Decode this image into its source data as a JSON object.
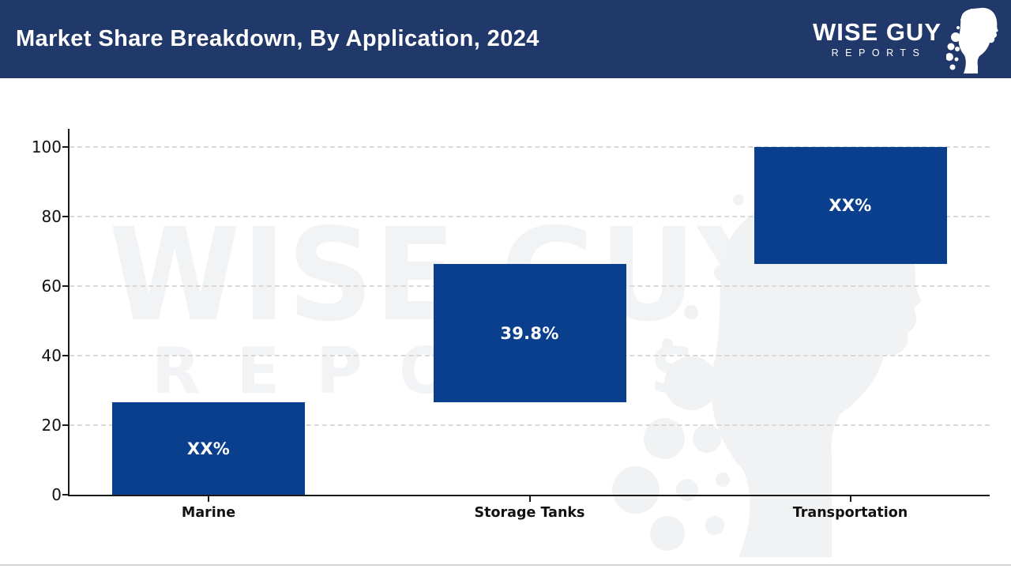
{
  "header": {
    "title": "Market Share Breakdown, By Application, 2024",
    "logo": {
      "line1": "WISE GUY",
      "line2": "REPORTS"
    }
  },
  "watermark": {
    "line1": "WISE GUY",
    "line2": "REPORTS"
  },
  "colors": {
    "header_bg": "#21386B",
    "bar_blue": "#0A3F8E",
    "gridline": "#D9D9D9",
    "axis": "#1A1A1A",
    "watermark": "#F2F3F5",
    "bar_label_text": "#FFFFFF"
  },
  "chart_data": {
    "type": "bar",
    "subtype": "waterfall-stacked-segments",
    "title": "Market Share Breakdown, By Application, 2024",
    "categories": [
      "Marine",
      "Storage Tanks",
      "Transportation"
    ],
    "segments": [
      {
        "category": "Marine",
        "start": 0,
        "end": 26.5,
        "label": "XX%"
      },
      {
        "category": "Storage Tanks",
        "start": 26.5,
        "end": 66.3,
        "label": "39.8%"
      },
      {
        "category": "Transportation",
        "start": 66.3,
        "end": 100,
        "label": "XX%"
      }
    ],
    "values_displayed": [
      "XX%",
      "39.8%",
      "XX%"
    ],
    "yticks": [
      0,
      20,
      40,
      60,
      80,
      100
    ],
    "ylim": [
      0,
      105
    ],
    "xlabel": "",
    "ylabel": "",
    "grid": "horizontal-dashed",
    "legend": false,
    "bar_color": "#0A3F8E"
  }
}
